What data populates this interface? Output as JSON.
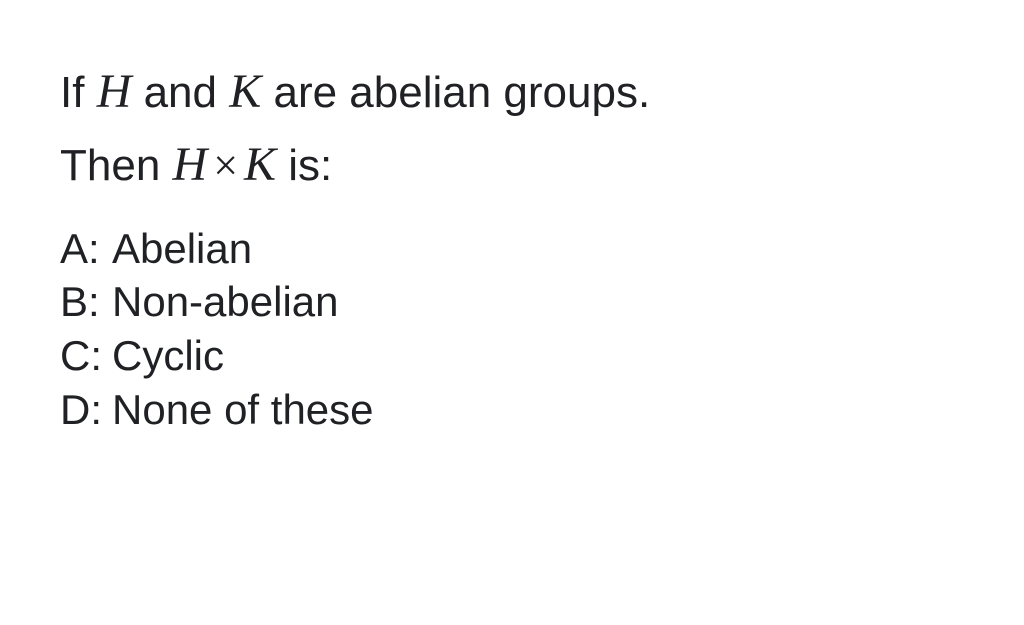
{
  "question": {
    "line1_prefix": "If ",
    "var_H": "H",
    "line1_mid": " and ",
    "var_K": "K",
    "line1_suffix": " are abelian groups.",
    "line2_prefix": "Then ",
    "product_H": "H",
    "product_op": "×",
    "product_K": "K",
    "line2_suffix": " is:"
  },
  "options": [
    {
      "label": "A:",
      "text": "Abelian"
    },
    {
      "label": "B:",
      "text": "Non-abelian"
    },
    {
      "label": "C:",
      "text": "Cyclic"
    },
    {
      "label": "D:",
      "text": "None of these"
    }
  ],
  "style": {
    "background_color": "#ffffff",
    "text_color": "#202124",
    "question_fontsize": 44,
    "math_fontsize": 48,
    "option_fontsize": 42,
    "font_family": "Arial, Helvetica, sans-serif",
    "math_font_family": "Times New Roman"
  }
}
